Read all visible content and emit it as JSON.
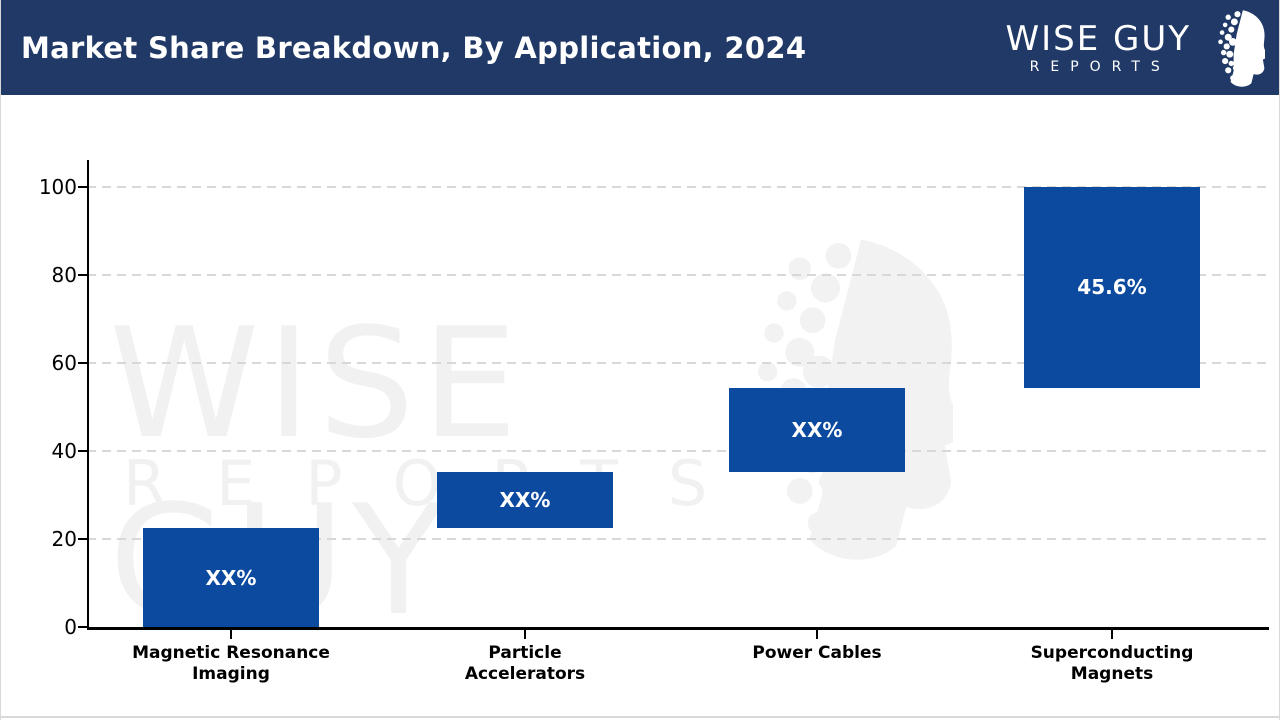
{
  "header": {
    "title": "Market Share Breakdown, By Application, 2024",
    "background_color": "#213966",
    "logo": {
      "wordmark": "WISE GUY",
      "subtext": "REPORTS"
    }
  },
  "watermark": {
    "line1": "WISE GUY",
    "line2": "REPORTS"
  },
  "chart_data": {
    "type": "bar",
    "subtype": "floating-waterfall",
    "title": "Market Share Breakdown, By Application, 2024",
    "xlabel": "",
    "ylabel": "",
    "ylim": [
      0,
      100
    ],
    "yticks": [
      0,
      20,
      40,
      60,
      80,
      100
    ],
    "grid": "horizontal-dashed",
    "legend_position": "none",
    "bar_color": "#0b4a9f",
    "grid_color": "#d8d8d8",
    "categories": [
      "Magnetic Resonance Imaging",
      "Particle Accelerators",
      "Power Cables",
      "Superconducting Magnets"
    ],
    "category_lines": [
      [
        "Magnetic Resonance",
        "Imaging"
      ],
      [
        "Particle",
        "Accelerators"
      ],
      [
        "Power Cables"
      ],
      [
        "Superconducting",
        "Magnets"
      ]
    ],
    "segments": [
      {
        "category": "Magnetic Resonance Imaging",
        "start": 0,
        "end": 22.5,
        "label": "XX%"
      },
      {
        "category": "Particle Accelerators",
        "start": 22.5,
        "end": 35.2,
        "label": "XX%"
      },
      {
        "category": "Power Cables",
        "start": 35.2,
        "end": 54.4,
        "label": "XX%"
      },
      {
        "category": "Superconducting Magnets",
        "start": 54.4,
        "end": 100,
        "label": "45.6%"
      }
    ]
  }
}
